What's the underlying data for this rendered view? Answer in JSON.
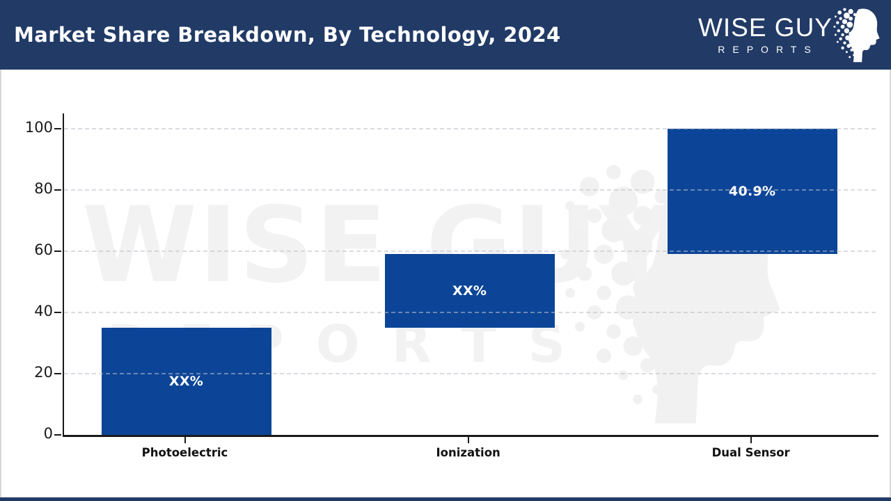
{
  "header": {
    "title": "Market Share Breakdown, By Technology, 2024",
    "logo": {
      "brand": "WISE GUY",
      "subbrand": "REPORTS"
    }
  },
  "watermark": {
    "brand": "WISE GUY",
    "subbrand": "REPORTS"
  },
  "chart_data": {
    "type": "bar",
    "subtype": "waterfall-floating-bars",
    "title": "Market Share Breakdown, By Technology, 2024",
    "categories": [
      "Photoelectric",
      "Ionization",
      "Dual Sensor"
    ],
    "series": [
      {
        "name": "Market Share (%)",
        "segments": [
          {
            "category": "Photoelectric",
            "start": 0,
            "end": 35,
            "height": 35,
            "label": "XX%"
          },
          {
            "category": "Ionization",
            "start": 35,
            "end": 59.1,
            "height": 24.1,
            "label": "XX%"
          },
          {
            "category": "Dual Sensor",
            "start": 59.1,
            "end": 100,
            "height": 40.9,
            "label": "40.9%"
          }
        ]
      }
    ],
    "xlabel": "",
    "ylabel": "",
    "yticks": [
      0,
      20,
      40,
      60,
      80,
      100
    ],
    "ylim": [
      0,
      105
    ],
    "grid": "horizontal-dashed-over-bars",
    "legend": "none",
    "bar_color": "#0c4597"
  },
  "colors": {
    "header_bg": "#213a66",
    "footer_bg": "#213a66",
    "bar": "#0c4597",
    "watermark": "#f2f2f2",
    "axis": "#1a1a1a",
    "gridline": "#dbdee3",
    "title_text": "#ffffff",
    "bar_label_text": "#ffffff"
  }
}
